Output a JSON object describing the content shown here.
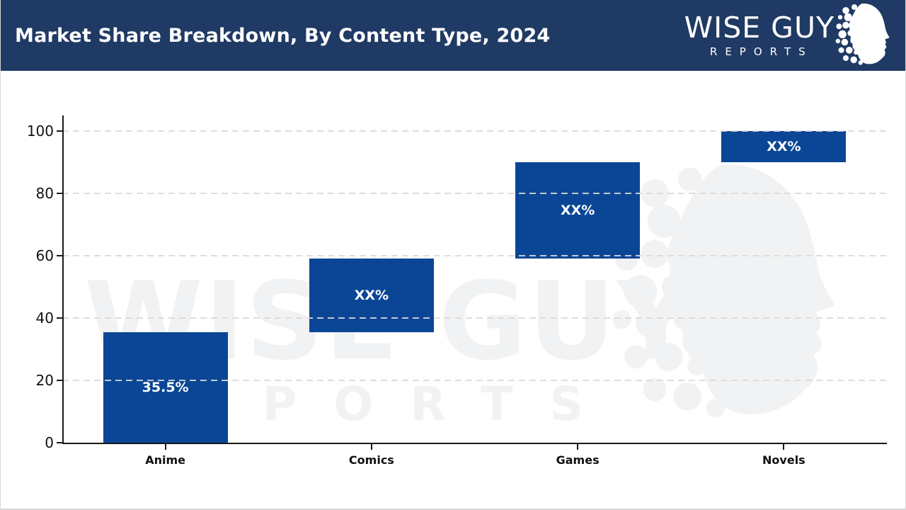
{
  "header": {
    "title": "Market Share Breakdown, By Content Type, 2024",
    "background_color": "#1f3a64",
    "logo": {
      "line1": "WISE GUY",
      "line2": "REPORTS",
      "icon": "dotted-head-profile"
    }
  },
  "watermark": {
    "line1": "WISE GUY",
    "line2": "REPORTS",
    "icon": "dotted-head-profile",
    "color": "#f1f2f4"
  },
  "chart_data": {
    "type": "bar",
    "subtype": "waterfall",
    "title": "Market Share Breakdown, By Content Type, 2024",
    "categories": [
      "Anime",
      "Comics",
      "Games",
      "Novels"
    ],
    "segments": [
      {
        "category": "Anime",
        "start": 0,
        "end": 35.5,
        "label": "35.5%"
      },
      {
        "category": "Comics",
        "start": 35.5,
        "end": 59,
        "label": "XX%"
      },
      {
        "category": "Games",
        "start": 59,
        "end": 90,
        "label": "XX%"
      },
      {
        "category": "Novels",
        "start": 90,
        "end": 100,
        "label": "XX%"
      }
    ],
    "xlabel": "",
    "ylabel": "",
    "ylim": [
      0,
      105
    ],
    "yticks": [
      0,
      20,
      40,
      60,
      80,
      100
    ],
    "grid": "horizontal-dashed",
    "grid_above_bars": true,
    "bar_color": "#0b4696",
    "bar_label_color": "#ffffff",
    "legend": "none"
  }
}
